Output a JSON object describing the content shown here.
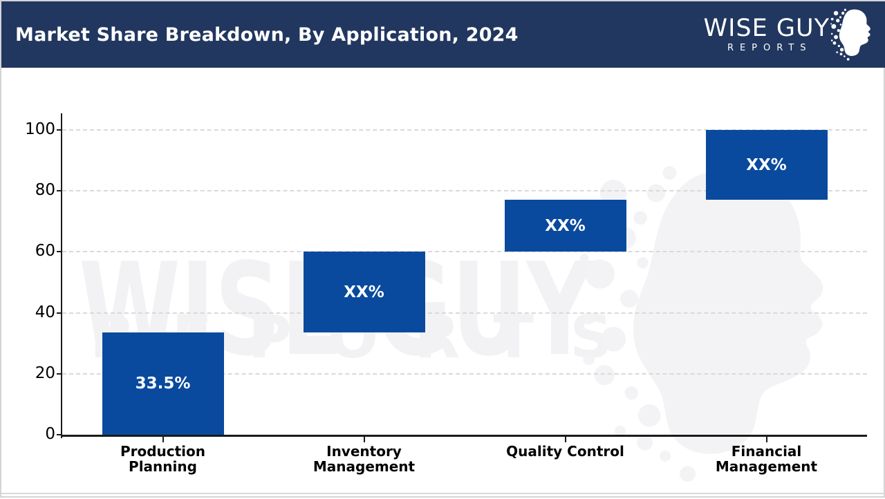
{
  "header": {
    "title": "Market Share Breakdown, By Application, 2024",
    "logo": {
      "line1": "WISE GUY",
      "line2": "REPORTS"
    }
  },
  "watermark": {
    "line1": "WISE GUY",
    "line2": "REPORTS"
  },
  "colors": {
    "header_bg": "#21375f",
    "bar": "#0a4a9e",
    "grid": "#d9d9d9",
    "axis": "#1a1a1a",
    "bar_label": "#ffffff",
    "watermark": "#f2f2f4"
  },
  "chart_data": {
    "type": "bar",
    "subtype": "waterfall",
    "title": "Market Share Breakdown, By Application, 2024",
    "categories": [
      "Production\nPlanning",
      "Inventory\nManagement",
      "Quality Control",
      "Financial\nManagement"
    ],
    "series": [
      {
        "name": "Market share (%)",
        "starts": [
          0,
          33.5,
          60,
          77
        ],
        "ends": [
          33.5,
          60,
          77,
          100
        ],
        "labels": [
          "33.5%",
          "XX%",
          "XX%",
          "XX%"
        ]
      }
    ],
    "ylim": [
      0,
      100
    ],
    "yticks": [
      0,
      20,
      40,
      60,
      80,
      100
    ],
    "xlabel": "",
    "ylabel": "",
    "grid": "horizontal-dashed",
    "legend": false
  }
}
